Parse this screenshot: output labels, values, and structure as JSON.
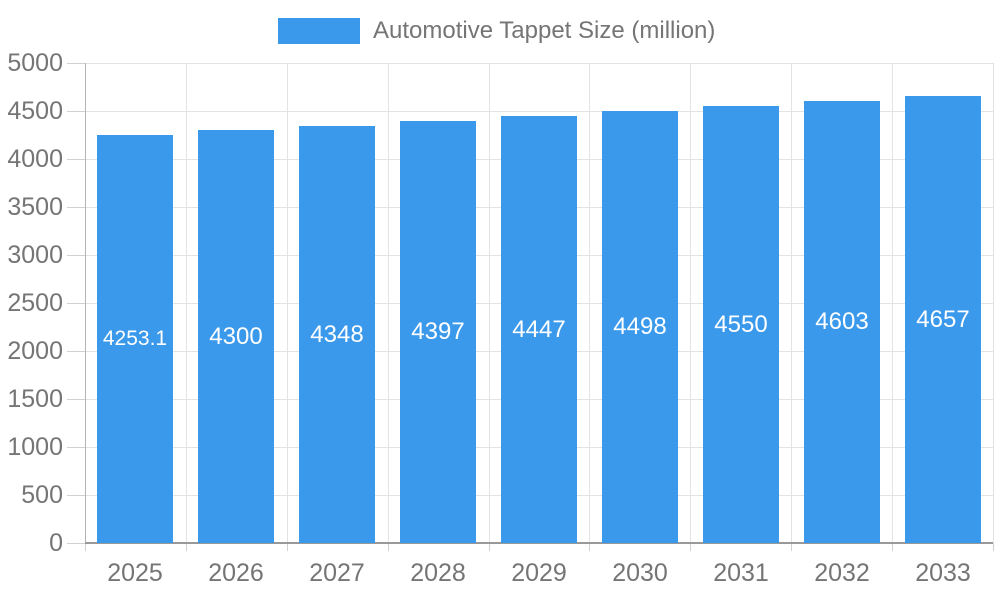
{
  "chart_data": {
    "type": "bar",
    "title": "Automotive Tappet Size (million)",
    "categories": [
      "2025",
      "2026",
      "2027",
      "2028",
      "2029",
      "2030",
      "2031",
      "2032",
      "2033"
    ],
    "series": [
      {
        "name": "Automotive Tappet Size (million)",
        "values": [
          4253.1,
          4300,
          4348,
          4397,
          4447,
          4498,
          4550,
          4603,
          4657
        ],
        "labels": [
          "4253.1",
          "4300",
          "4348",
          "4397",
          "4447",
          "4498",
          "4550",
          "4603",
          "4657"
        ],
        "color": "#3b99ec"
      }
    ],
    "xlabel": "",
    "ylabel": "",
    "ylim": [
      0,
      5000
    ],
    "ytick_step": 500,
    "yticks": [
      0,
      500,
      1000,
      1500,
      2000,
      2500,
      3000,
      3500,
      4000,
      4500,
      5000
    ],
    "grid": true,
    "legend_position": "top-center",
    "bar_label_position": "middle"
  },
  "colors": {
    "bar": "#3b99ec",
    "grid": "#e3e3e3",
    "tick": "#d0d0d0",
    "axis": "#b3b3b3",
    "baseline": "#999999",
    "label": "#757575",
    "annotation": "#ffffff",
    "background": "#ffffff"
  }
}
